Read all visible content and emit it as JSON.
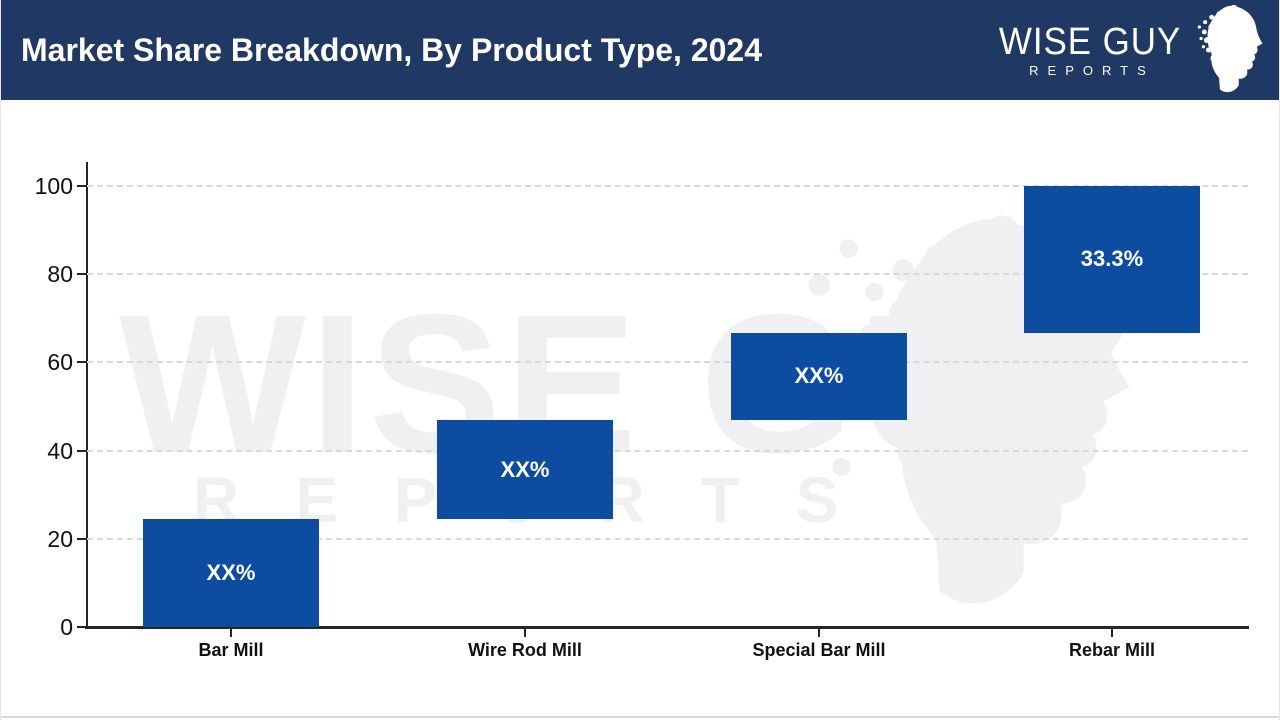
{
  "header": {
    "title": "Market Share Breakdown, By Product Type, 2024",
    "logo": {
      "wordmark": "WISE GUY",
      "subtitle": "REPORTS"
    }
  },
  "watermark": {
    "wordmark": "WISE GUY",
    "subtitle": "REPORTS"
  },
  "icons": {
    "wiseguy-face-icon": "dotted-human-head-profile"
  },
  "colors": {
    "header_bg": "#1f3864",
    "bar": "#0c4da2",
    "bar_label": "#ffffff",
    "axis": "#262626",
    "grid": "#d9d9d9",
    "tick_text": "#111111",
    "watermark": "#f0f0f2",
    "page_bg": "#ffffff"
  },
  "chart_data": {
    "type": "bar",
    "subtype": "waterfall-floating-bars",
    "title": "Market Share Breakdown, By Product Type, 2024",
    "categories": [
      "Bar Mill",
      "Wire Rod Mill",
      "Special Bar Mill",
      "Rebar Mill"
    ],
    "segments": [
      {
        "category": "Bar Mill",
        "start": 0,
        "end": 24.4,
        "label": "XX%"
      },
      {
        "category": "Wire Rod Mill",
        "start": 24.4,
        "end": 47.0,
        "label": "XX%"
      },
      {
        "category": "Special Bar Mill",
        "start": 47.0,
        "end": 66.7,
        "label": "XX%"
      },
      {
        "category": "Rebar Mill",
        "start": 66.7,
        "end": 100,
        "label": "33.3%"
      }
    ],
    "value_suffix": "%",
    "xlabel": "",
    "ylabel": "",
    "ylim": [
      0,
      100
    ],
    "yticks": [
      0,
      20,
      40,
      60,
      80,
      100
    ],
    "grid": "horizontal-dashed",
    "legend": "none"
  }
}
